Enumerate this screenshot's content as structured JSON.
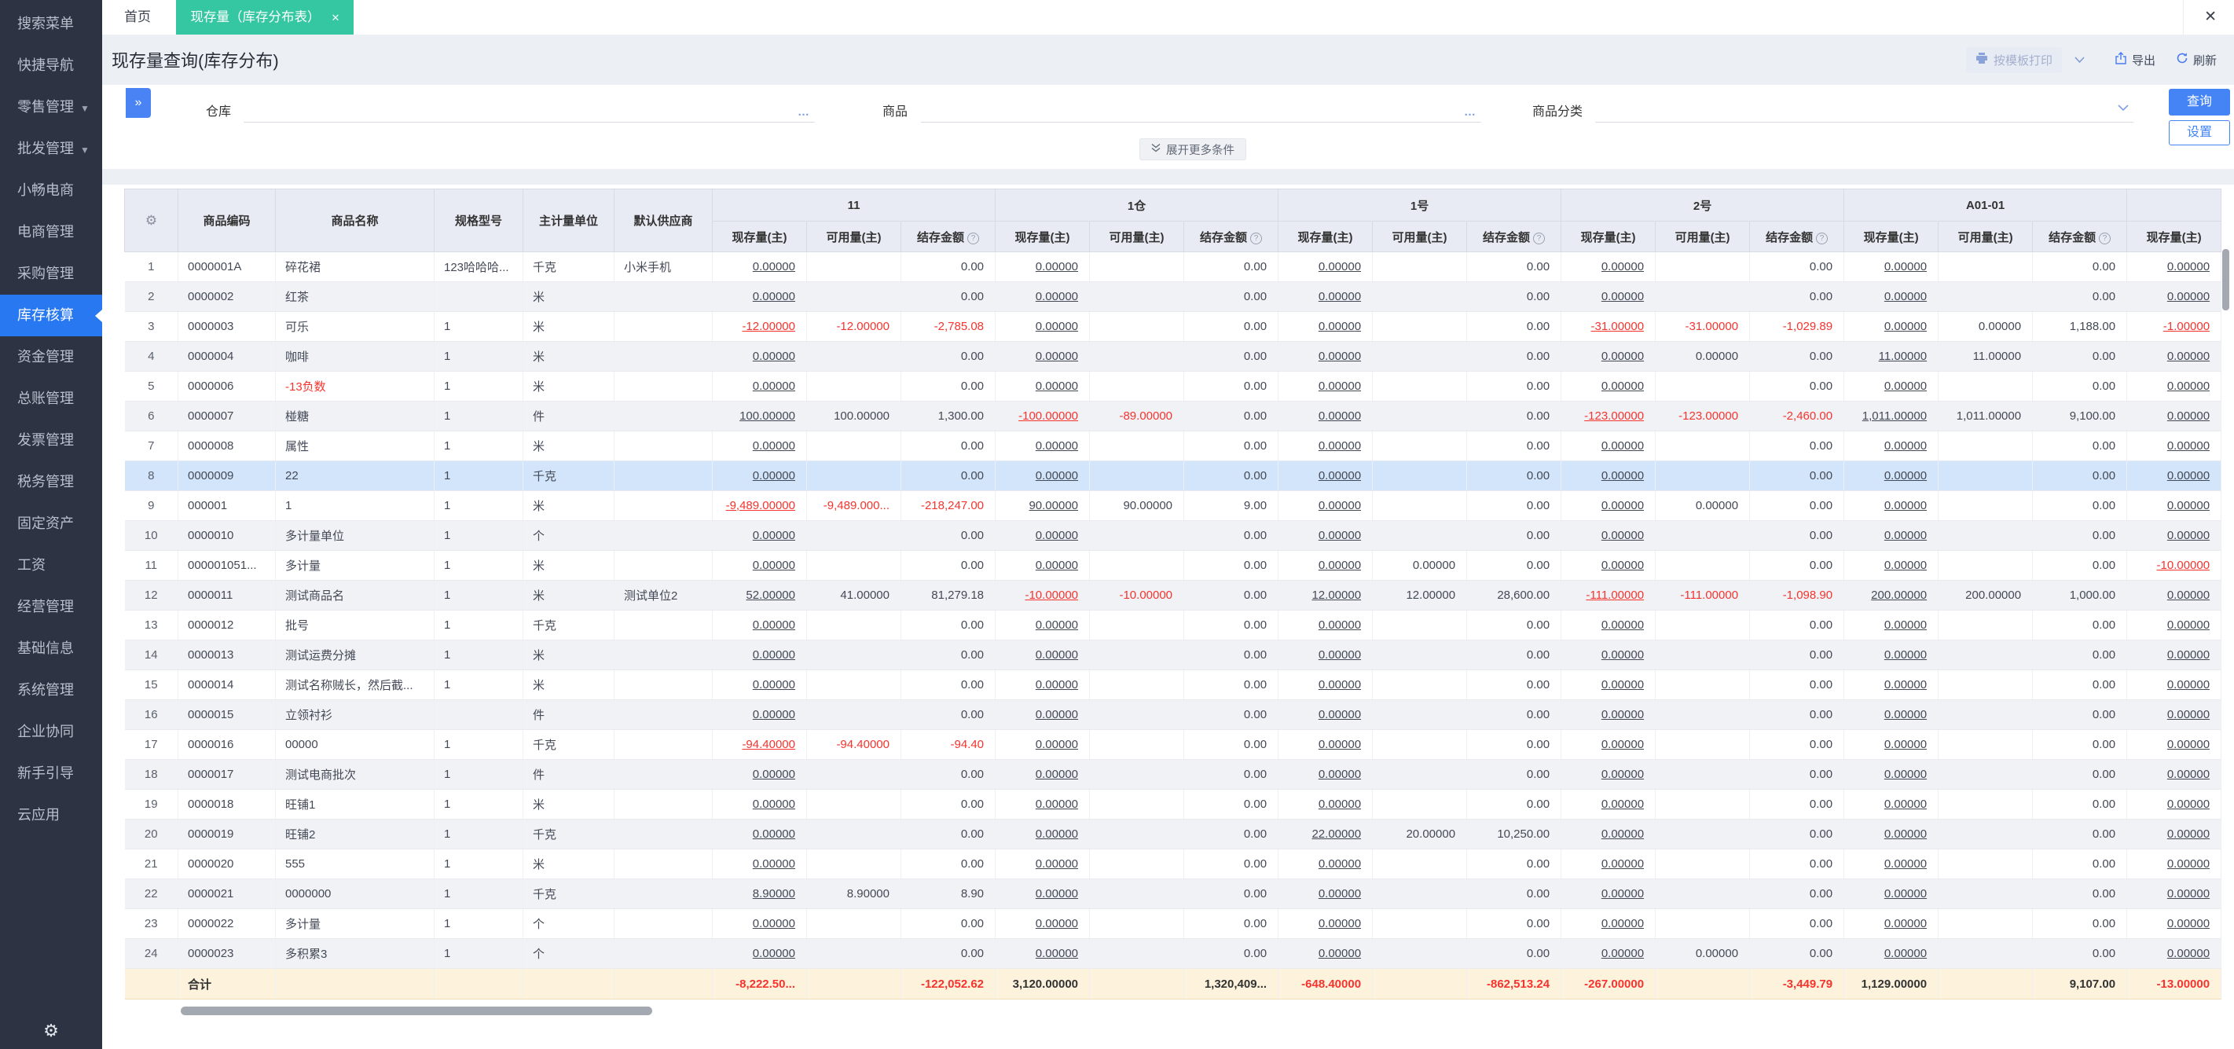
{
  "window": {
    "close": "✕"
  },
  "sidebar": {
    "footer_gear": "⚙",
    "items": [
      {
        "label": "搜索菜单"
      },
      {
        "label": "快捷导航"
      },
      {
        "label": "零售管理",
        "caret": true
      },
      {
        "label": "批发管理",
        "caret": true
      },
      {
        "label": "小畅电商"
      },
      {
        "label": "电商管理"
      },
      {
        "label": "采购管理"
      },
      {
        "label": "库存核算",
        "active": true
      },
      {
        "label": "资金管理"
      },
      {
        "label": "总账管理"
      },
      {
        "label": "发票管理"
      },
      {
        "label": "税务管理"
      },
      {
        "label": "固定资产"
      },
      {
        "label": "工资"
      },
      {
        "label": "经营管理"
      },
      {
        "label": "基础信息"
      },
      {
        "label": "系统管理"
      },
      {
        "label": "企业协同"
      },
      {
        "label": "新手引导"
      },
      {
        "label": "云应用"
      }
    ]
  },
  "tabs": {
    "home": "首页",
    "active_tab": "现存量（库存分布表）",
    "close_icon": "✕"
  },
  "page": {
    "title": "现存量查询(库存分布)"
  },
  "toolbar": {
    "print": "按模板打印",
    "export": "导出",
    "refresh": "刷新"
  },
  "filters": {
    "warehouse_label": "仓库",
    "product_label": "商品",
    "category_label": "商品分类",
    "ellipsis": "…",
    "query_button": "查询",
    "settings_button": "设置",
    "expand_more": "展开更多条件",
    "expand_icon": "»"
  },
  "table": {
    "gear_icon": "⚙",
    "fixed_headers": [
      "商品编码",
      "商品名称",
      "规格型号",
      "主计量单位",
      "默认供应商"
    ],
    "sub_headers": {
      "qty": "现存量(主)",
      "avail": "可用量(主)",
      "amount": "结存金额"
    },
    "warehouse_groups": [
      {
        "name": "11",
        "cols": 3
      },
      {
        "name": "1仓",
        "cols": 3
      },
      {
        "name": "1号",
        "cols": 3
      },
      {
        "name": "2号",
        "cols": 3
      },
      {
        "name": "A01-01",
        "cols": 3
      },
      {
        "name": "",
        "cols": 1
      }
    ],
    "total_label": "合计",
    "rows": [
      {
        "seq": 1,
        "code": "0000001A",
        "name": "碎花裙",
        "spec": "123哈哈哈...",
        "unit": "千克",
        "supplier": "小米手机",
        "cells": [
          "0.00000",
          "",
          "0.00",
          "0.00000",
          "",
          "0.00",
          "0.00000",
          "",
          "0.00",
          "0.00000",
          "",
          "0.00",
          "0.00000",
          "",
          "0.00",
          "0.00000"
        ]
      },
      {
        "seq": 2,
        "code": "0000002",
        "name": "红茶",
        "spec": "",
        "unit": "米",
        "supplier": "",
        "cells": [
          "0.00000",
          "",
          "0.00",
          "0.00000",
          "",
          "0.00",
          "0.00000",
          "",
          "0.00",
          "0.00000",
          "",
          "0.00",
          "0.00000",
          "",
          "0.00",
          "0.00000"
        ]
      },
      {
        "seq": 3,
        "code": "0000003",
        "name": "可乐",
        "spec": "1",
        "unit": "米",
        "supplier": "",
        "cells": [
          "-12.00000",
          "-12.00000",
          "-2,785.08",
          "0.00000",
          "",
          "0.00",
          "0.00000",
          "",
          "0.00",
          "-31.00000",
          "-31.00000",
          "-1,029.89",
          "0.00000",
          "0.00000",
          "1,188.00",
          "-1.00000"
        ]
      },
      {
        "seq": 4,
        "code": "0000004",
        "name": "咖啡",
        "spec": "1",
        "unit": "米",
        "supplier": "",
        "cells": [
          "0.00000",
          "",
          "0.00",
          "0.00000",
          "",
          "0.00",
          "0.00000",
          "",
          "0.00",
          "0.00000",
          "0.00000",
          "0.00",
          "11.00000",
          "11.00000",
          "0.00",
          "0.00000"
        ]
      },
      {
        "seq": 5,
        "code": "0000006",
        "name": "-13负数",
        "name_red": true,
        "spec": "1",
        "unit": "米",
        "supplier": "",
        "cells": [
          "0.00000",
          "",
          "0.00",
          "0.00000",
          "",
          "0.00",
          "0.00000",
          "",
          "0.00",
          "0.00000",
          "",
          "0.00",
          "0.00000",
          "",
          "0.00",
          "0.00000"
        ]
      },
      {
        "seq": 6,
        "code": "0000007",
        "name": "椪糖",
        "spec": "1",
        "unit": "件",
        "supplier": "",
        "cells": [
          "100.00000",
          "100.00000",
          "1,300.00",
          "-100.00000",
          "-89.00000",
          "0.00",
          "0.00000",
          "",
          "0.00",
          "-123.00000",
          "-123.00000",
          "-2,460.00",
          "1,011.00000",
          "1,011.00000",
          "9,100.00",
          "0.00000"
        ]
      },
      {
        "seq": 7,
        "code": "0000008",
        "name": "属性",
        "spec": "1",
        "unit": "米",
        "supplier": "",
        "cells": [
          "0.00000",
          "",
          "0.00",
          "0.00000",
          "",
          "0.00",
          "0.00000",
          "",
          "0.00",
          "0.00000",
          "",
          "0.00",
          "0.00000",
          "",
          "0.00",
          "0.00000"
        ]
      },
      {
        "seq": 8,
        "code": "0000009",
        "name": "22",
        "spec": "1",
        "unit": "千克",
        "supplier": "",
        "highlight": true,
        "cells": [
          "0.00000",
          "",
          "0.00",
          "0.00000",
          "",
          "0.00",
          "0.00000",
          "",
          "0.00",
          "0.00000",
          "",
          "0.00",
          "0.00000",
          "",
          "0.00",
          "0.00000"
        ]
      },
      {
        "seq": 9,
        "code": "000001",
        "name": "1",
        "spec": "1",
        "unit": "米",
        "supplier": "",
        "cells": [
          "-9,489.00000",
          "-9,489.000...",
          "-218,247.00",
          "90.00000",
          "90.00000",
          "9.00",
          "0.00000",
          "",
          "0.00",
          "0.00000",
          "0.00000",
          "0.00",
          "0.00000",
          "",
          "0.00",
          "0.00000"
        ]
      },
      {
        "seq": 10,
        "code": "0000010",
        "name": "多计量单位",
        "spec": "1",
        "unit": "个",
        "supplier": "",
        "cells": [
          "0.00000",
          "",
          "0.00",
          "0.00000",
          "",
          "0.00",
          "0.00000",
          "",
          "0.00",
          "0.00000",
          "",
          "0.00",
          "0.00000",
          "",
          "0.00",
          "0.00000"
        ]
      },
      {
        "seq": 11,
        "code": "000001051...",
        "name": "多计量",
        "spec": "1",
        "unit": "米",
        "supplier": "",
        "cells": [
          "0.00000",
          "",
          "0.00",
          "0.00000",
          "",
          "0.00",
          "0.00000",
          "0.00000",
          "0.00",
          "0.00000",
          "",
          "0.00",
          "0.00000",
          "",
          "0.00",
          "-10.00000"
        ]
      },
      {
        "seq": 12,
        "code": "0000011",
        "name": "测试商品名",
        "spec": "1",
        "unit": "米",
        "supplier": "测试单位2",
        "cells": [
          "52.00000",
          "41.00000",
          "81,279.18",
          "-10.00000",
          "-10.00000",
          "0.00",
          "12.00000",
          "12.00000",
          "28,600.00",
          "-111.00000",
          "-111.00000",
          "-1,098.90",
          "200.00000",
          "200.00000",
          "1,000.00",
          "0.00000"
        ]
      },
      {
        "seq": 13,
        "code": "0000012",
        "name": "批号",
        "spec": "1",
        "unit": "千克",
        "supplier": "",
        "cells": [
          "0.00000",
          "",
          "0.00",
          "0.00000",
          "",
          "0.00",
          "0.00000",
          "",
          "0.00",
          "0.00000",
          "",
          "0.00",
          "0.00000",
          "",
          "0.00",
          "0.00000"
        ]
      },
      {
        "seq": 14,
        "code": "0000013",
        "name": "测试运费分摊",
        "spec": "1",
        "unit": "米",
        "supplier": "",
        "cells": [
          "0.00000",
          "",
          "0.00",
          "0.00000",
          "",
          "0.00",
          "0.00000",
          "",
          "0.00",
          "0.00000",
          "",
          "0.00",
          "0.00000",
          "",
          "0.00",
          "0.00000"
        ]
      },
      {
        "seq": 15,
        "code": "0000014",
        "name": "测试名称贼长，然后截...",
        "spec": "1",
        "unit": "米",
        "supplier": "",
        "cells": [
          "0.00000",
          "",
          "0.00",
          "0.00000",
          "",
          "0.00",
          "0.00000",
          "",
          "0.00",
          "0.00000",
          "",
          "0.00",
          "0.00000",
          "",
          "0.00",
          "0.00000"
        ]
      },
      {
        "seq": 16,
        "code": "0000015",
        "name": "立领衬衫",
        "spec": "",
        "unit": "件",
        "supplier": "",
        "cells": [
          "0.00000",
          "",
          "0.00",
          "0.00000",
          "",
          "0.00",
          "0.00000",
          "",
          "0.00",
          "0.00000",
          "",
          "0.00",
          "0.00000",
          "",
          "0.00",
          "0.00000"
        ]
      },
      {
        "seq": 17,
        "code": "0000016",
        "name": "00000",
        "spec": "1",
        "unit": "千克",
        "supplier": "",
        "cells": [
          "-94.40000",
          "-94.40000",
          "-94.40",
          "0.00000",
          "",
          "0.00",
          "0.00000",
          "",
          "0.00",
          "0.00000",
          "",
          "0.00",
          "0.00000",
          "",
          "0.00",
          "0.00000"
        ]
      },
      {
        "seq": 18,
        "code": "0000017",
        "name": "测试电商批次",
        "spec": "1",
        "unit": "件",
        "supplier": "",
        "cells": [
          "0.00000",
          "",
          "0.00",
          "0.00000",
          "",
          "0.00",
          "0.00000",
          "",
          "0.00",
          "0.00000",
          "",
          "0.00",
          "0.00000",
          "",
          "0.00",
          "0.00000"
        ]
      },
      {
        "seq": 19,
        "code": "0000018",
        "name": "旺铺1",
        "spec": "1",
        "unit": "米",
        "supplier": "",
        "cells": [
          "0.00000",
          "",
          "0.00",
          "0.00000",
          "",
          "0.00",
          "0.00000",
          "",
          "0.00",
          "0.00000",
          "",
          "0.00",
          "0.00000",
          "",
          "0.00",
          "0.00000"
        ]
      },
      {
        "seq": 20,
        "code": "0000019",
        "name": "旺铺2",
        "spec": "1",
        "unit": "千克",
        "supplier": "",
        "cells": [
          "0.00000",
          "",
          "0.00",
          "0.00000",
          "",
          "0.00",
          "22.00000",
          "20.00000",
          "10,250.00",
          "0.00000",
          "",
          "0.00",
          "0.00000",
          "",
          "0.00",
          "0.00000"
        ]
      },
      {
        "seq": 21,
        "code": "0000020",
        "name": "555",
        "spec": "1",
        "unit": "米",
        "supplier": "",
        "cells": [
          "0.00000",
          "",
          "0.00",
          "0.00000",
          "",
          "0.00",
          "0.00000",
          "",
          "0.00",
          "0.00000",
          "",
          "0.00",
          "0.00000",
          "",
          "0.00",
          "0.00000"
        ]
      },
      {
        "seq": 22,
        "code": "0000021",
        "name": "0000000",
        "spec": "1",
        "unit": "千克",
        "supplier": "",
        "cells": [
          "8.90000",
          "8.90000",
          "8.90",
          "0.00000",
          "",
          "0.00",
          "0.00000",
          "",
          "0.00",
          "0.00000",
          "",
          "0.00",
          "0.00000",
          "",
          "0.00",
          "0.00000"
        ]
      },
      {
        "seq": 23,
        "code": "0000022",
        "name": "多计量",
        "spec": "1",
        "unit": "个",
        "supplier": "",
        "cells": [
          "0.00000",
          "",
          "0.00",
          "0.00000",
          "",
          "0.00",
          "0.00000",
          "",
          "0.00",
          "0.00000",
          "",
          "0.00",
          "0.00000",
          "",
          "0.00",
          "0.00000"
        ]
      },
      {
        "seq": 24,
        "code": "0000023",
        "name": "多积累3",
        "spec": "1",
        "unit": "个",
        "supplier": "",
        "cells": [
          "0.00000",
          "",
          "0.00",
          "0.00000",
          "",
          "0.00",
          "0.00000",
          "",
          "0.00",
          "0.00000",
          "0.00000",
          "0.00",
          "0.00000",
          "",
          "0.00",
          "0.00000"
        ]
      }
    ],
    "total_cells": [
      "-8,222.50...",
      "",
      "-122,052.62",
      "3,120.00000",
      "",
      "1,320,409...",
      "-648.40000",
      "",
      "-862,513.24",
      "-267.00000",
      "",
      "-3,449.79",
      "1,129.00000",
      "",
      "9,107.00",
      "-13.00000"
    ]
  }
}
